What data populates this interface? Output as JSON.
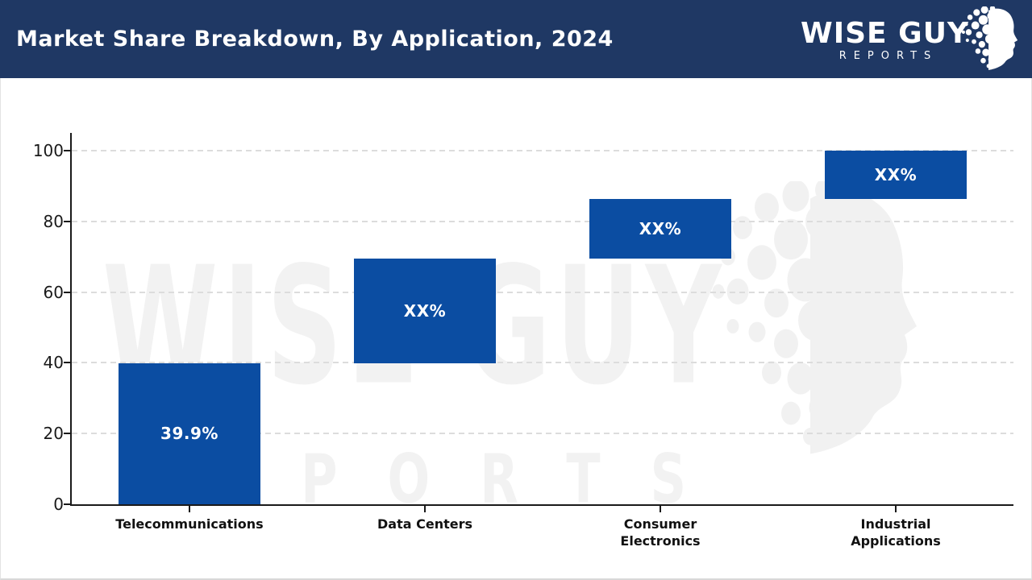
{
  "header": {
    "title": "Market Share Breakdown, By Application, 2024",
    "logo": {
      "wordmark": "WISE GUY",
      "subtitle": "REPORTS"
    }
  },
  "watermark": {
    "line1": "WISE GUY",
    "line2": "REPORTS"
  },
  "chart_data": {
    "type": "bar",
    "subtype": "waterfall",
    "title": "Market Share Breakdown, By Application, 2024",
    "categories": [
      "Telecommunications",
      "Data Centers",
      "Consumer Electronics",
      "Industrial Applications"
    ],
    "tick_labels": [
      "Telecommunications",
      "Data Centers",
      "Consumer\nElectronics",
      "Industrial\nApplications"
    ],
    "segments": [
      {
        "category": "Telecommunications",
        "start": 0,
        "end": 39.9,
        "value_label": "39.9%"
      },
      {
        "category": "Data Centers",
        "start": 39.9,
        "end": 69.5,
        "value_label": "XX%"
      },
      {
        "category": "Consumer Electronics",
        "start": 69.5,
        "end": 86.3,
        "value_label": "XX%"
      },
      {
        "category": "Industrial Applications",
        "start": 86.3,
        "end": 100,
        "value_label": "XX%"
      }
    ],
    "y_ticks": [
      0,
      20,
      40,
      60,
      80,
      100
    ],
    "ylim": [
      0,
      105
    ],
    "grid": true,
    "legend": "none",
    "bar_color": "#0B4DA2"
  },
  "colors": {
    "header_bg": "#1F3864",
    "bar": "#0B4DA2",
    "axis": "#1a1a1a",
    "grid": "#dcdcdc"
  }
}
